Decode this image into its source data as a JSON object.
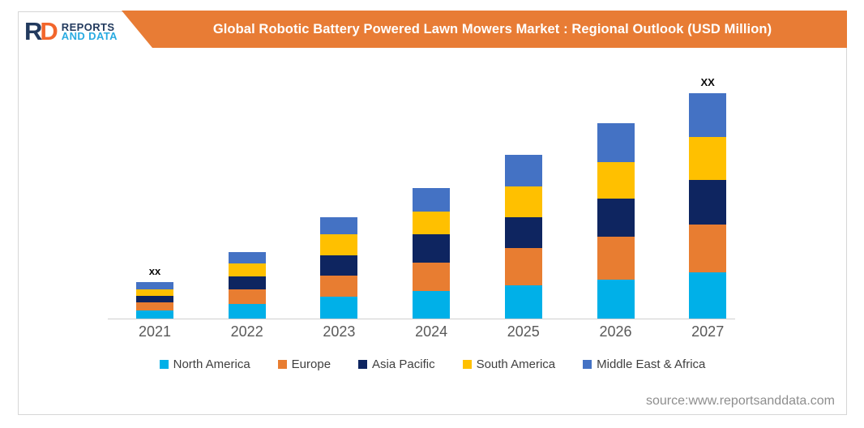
{
  "logo": {
    "mark_r": "R",
    "mark_d": "D",
    "line1": "REPORTS",
    "line2": "AND DATA",
    "colors": {
      "mark_r": "#223a5e",
      "mark_d": "#f2662c",
      "line1": "#223a5e",
      "line2": "#29abe2"
    }
  },
  "banner": {
    "title": "Global Robotic Battery Powered Lawn Mowers Market : Regional Outlook (USD Million)",
    "background": "#e87c35",
    "text_color": "#ffffff"
  },
  "chart_data": {
    "type": "bar",
    "stacked": true,
    "title": "Global Robotic Battery Powered Lawn Mowers Market : Regional Outlook (USD Million)",
    "xlabel": "",
    "ylabel": "USD Million",
    "grid": false,
    "value_axis_visible": false,
    "values_labeled": false,
    "note": "actual values not disclosed; first and last bars labeled with placeholder",
    "categories": [
      "2021",
      "2022",
      "2023",
      "2024",
      "2025",
      "2026",
      "2027"
    ],
    "series": [
      {
        "name": "North America",
        "color": "#00b0e8",
        "values": [
          10,
          18,
          27,
          34,
          41,
          48,
          57
        ]
      },
      {
        "name": "Europe",
        "color": "#e87d31",
        "values": [
          10,
          18,
          26,
          35,
          46,
          53,
          59
        ]
      },
      {
        "name": "Asia Pacific",
        "color": "#0e2560",
        "values": [
          8,
          16,
          25,
          35,
          38,
          47,
          55
        ]
      },
      {
        "name": "South America",
        "color": "#ffc000",
        "values": [
          8,
          16,
          26,
          28,
          38,
          45,
          53
        ]
      },
      {
        "name": "Middle East & Africa",
        "color": "#4472c4",
        "values": [
          9,
          14,
          21,
          29,
          39,
          48,
          54
        ]
      }
    ],
    "annotations": [
      {
        "category": "2021",
        "text": "xx"
      },
      {
        "category": "2027",
        "text": "XX"
      }
    ],
    "legend_position": "bottom",
    "axis_line_color": "#cfcfcf",
    "frame_border_color": "#d6d6d6"
  },
  "source": {
    "label": "source:www.reportsanddata.com"
  }
}
